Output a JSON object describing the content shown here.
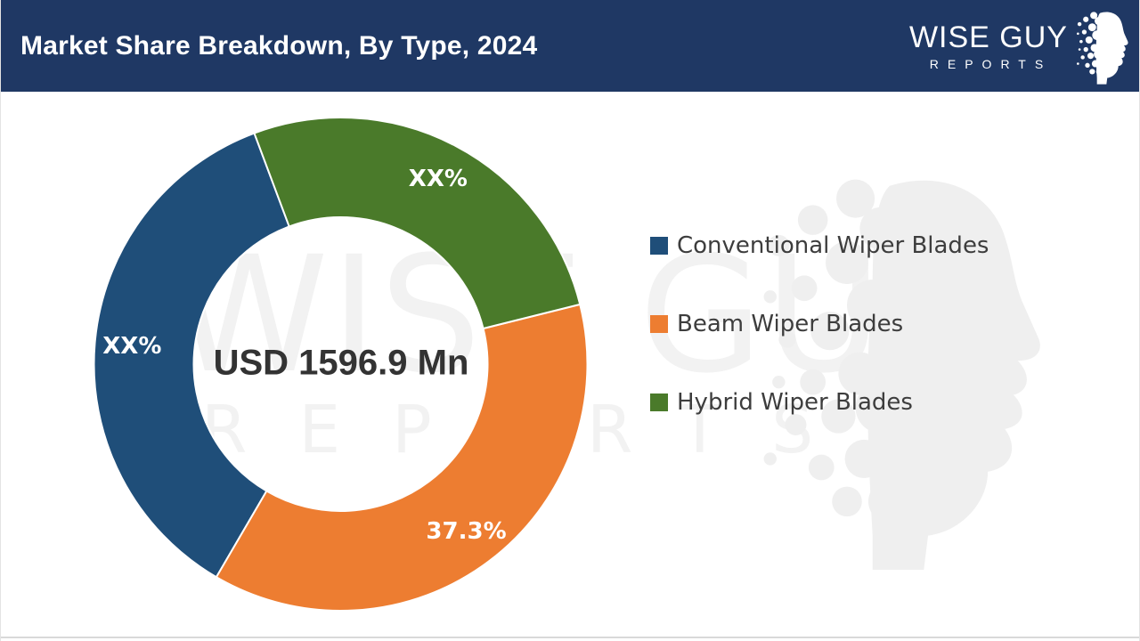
{
  "header": {
    "title": "Market Share Breakdown, By Type, 2024",
    "logo": {
      "name": "WISE GUY",
      "subtitle": "REPORTS"
    }
  },
  "watermark": {
    "name": "WISE GUY",
    "subtitle": "REPORTS"
  },
  "colors": {
    "header_bg": "#1f3864",
    "center_text": "#333333",
    "legend_text": "#3d3d3d",
    "slice_label_text": "#ffffff"
  },
  "chart_data": {
    "type": "pie",
    "subtype": "donut",
    "title": "Market Share Breakdown, By Type, 2024",
    "center_label": "USD 1596.9 Mn",
    "start_angle_deg": 110.5,
    "direction": "counterclockwise",
    "legend_position": "right",
    "slices": [
      {
        "name": "Conventional Wiper Blades",
        "value_pct": 35.9,
        "display_label": "XX%",
        "color": "#1f4e79"
      },
      {
        "name": "Beam Wiper Blades",
        "value_pct": 37.3,
        "display_label": "37.3%",
        "color": "#ed7d31"
      },
      {
        "name": "Hybrid Wiper Blades",
        "value_pct": 26.8,
        "display_label": "XX%",
        "color": "#4a7a2a"
      }
    ]
  }
}
